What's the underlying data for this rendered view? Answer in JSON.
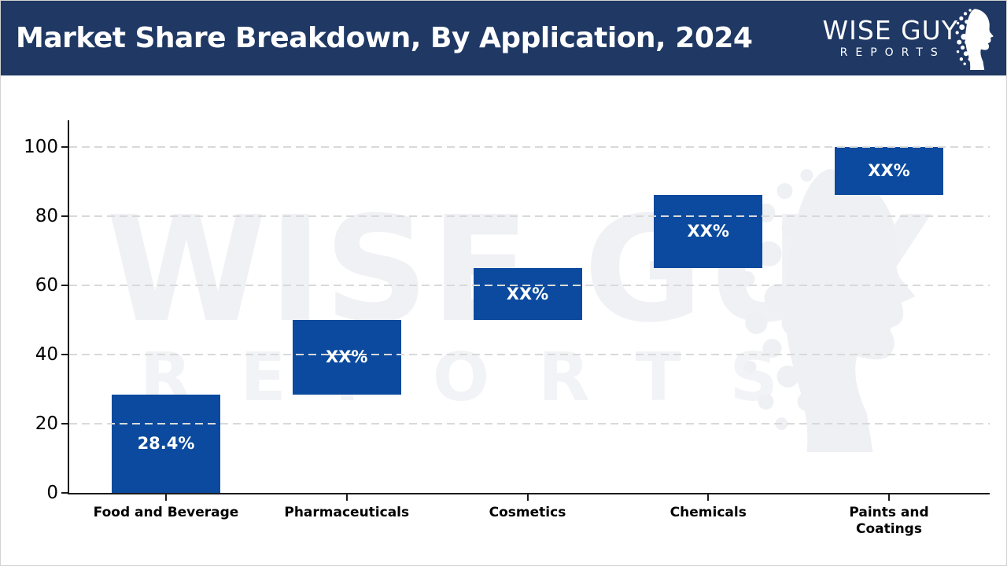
{
  "header": {
    "bg_color": "#1f3864",
    "title": "Market Share Breakdown, By Application, 2024",
    "logo": {
      "name": "WISE GUY",
      "sub": "REPORTS",
      "icon": "dotted-face-profile"
    }
  },
  "watermark": {
    "line1": "WISE GUY",
    "line2": "REPORTS",
    "icon": "dotted-face-profile",
    "color": "#f0f1f4"
  },
  "chart_data": {
    "type": "bar",
    "variant": "waterfall",
    "title": "Market Share Breakdown, By Application, 2024",
    "categories": [
      "Food and Beverage",
      "Pharmaceuticals",
      "Cosmetics",
      "Chemicals",
      "Paints and\nCoatings"
    ],
    "bars": [
      {
        "category": "Food and Beverage",
        "label": "28.4%",
        "start": 0,
        "end": 28.4,
        "value": 28.4
      },
      {
        "category": "Pharmaceuticals",
        "label": "XX%",
        "start": 28.4,
        "end": 50,
        "value": 21.6
      },
      {
        "category": "Cosmetics",
        "label": "XX%",
        "start": 50,
        "end": 65,
        "value": 15
      },
      {
        "category": "Chemicals",
        "label": "XX%",
        "start": 65,
        "end": 86,
        "value": 21
      },
      {
        "category": "Paints and Coatings",
        "label": "XX%",
        "start": 86,
        "end": 100,
        "value": 14
      }
    ],
    "xlabel": "",
    "ylabel": "",
    "ylim": [
      0,
      100
    ],
    "yticks": [
      0,
      20,
      40,
      60,
      80,
      100
    ],
    "grid": {
      "axis": "y",
      "style": "dashed",
      "color": "#d9d9d9"
    },
    "legend": "none",
    "bar_color": "#0b4a9e",
    "bar_label_color": "#ffffff",
    "axis_color": "#1a1a1a"
  }
}
